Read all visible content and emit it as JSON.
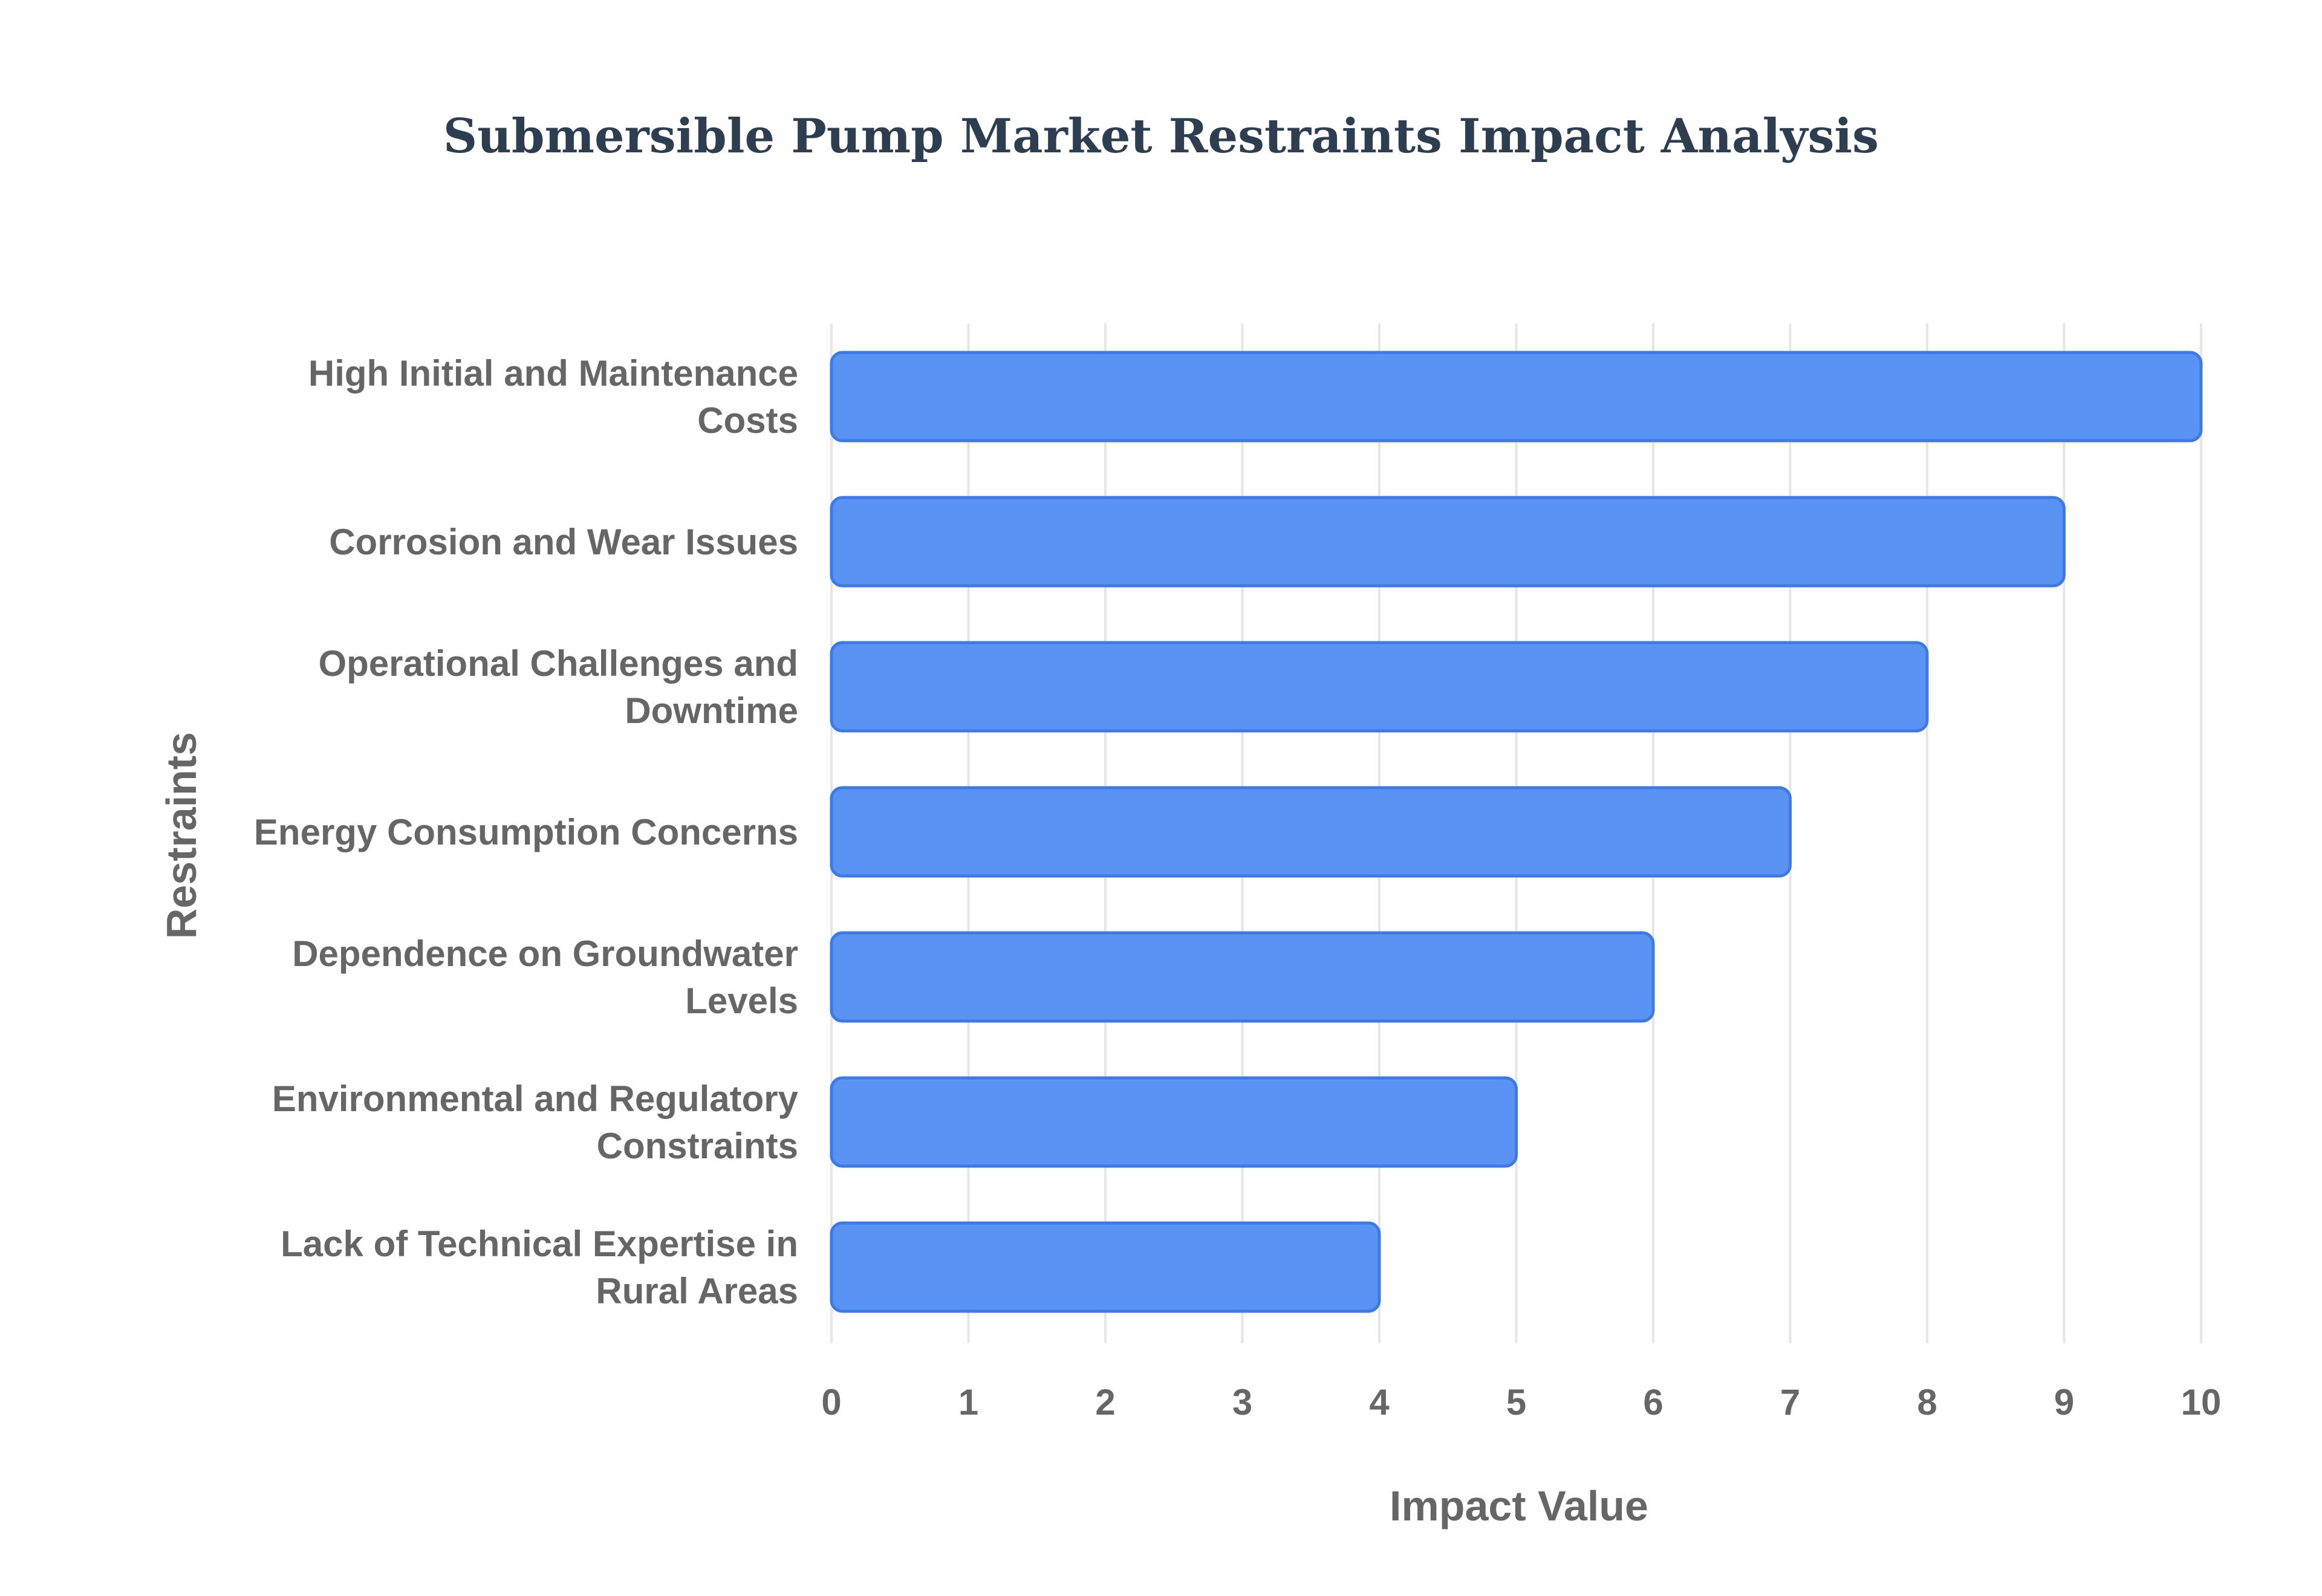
{
  "chart_data": {
    "type": "bar",
    "orientation": "horizontal",
    "title": "Submersible Pump Market Restraints Impact Analysis",
    "xlabel": "Impact Value",
    "ylabel": "Restraints",
    "xlim": [
      0,
      10
    ],
    "ticks": [
      "0",
      "1",
      "2",
      "3",
      "4",
      "5",
      "6",
      "7",
      "8",
      "9",
      "10"
    ],
    "grid": true,
    "legend": "none",
    "categories": [
      [
        "High Initial and Maintenance",
        "Costs"
      ],
      [
        "Corrosion and Wear Issues"
      ],
      [
        "Operational Challenges and",
        "Downtime"
      ],
      [
        "Energy Consumption Concerns"
      ],
      [
        "Dependence on Groundwater",
        "Levels"
      ],
      [
        "Environmental and Regulatory",
        "Constraints"
      ],
      [
        "Lack of Technical Expertise in",
        "Rural Areas"
      ]
    ],
    "values": [
      10,
      9,
      8,
      7,
      6,
      5,
      4
    ]
  },
  "colors": {
    "title": "#2c3e50",
    "bar_fill": "#5b93f5",
    "bar_stroke": "#3b7be8",
    "grid": "#e6e6e6",
    "text": "#666666"
  }
}
